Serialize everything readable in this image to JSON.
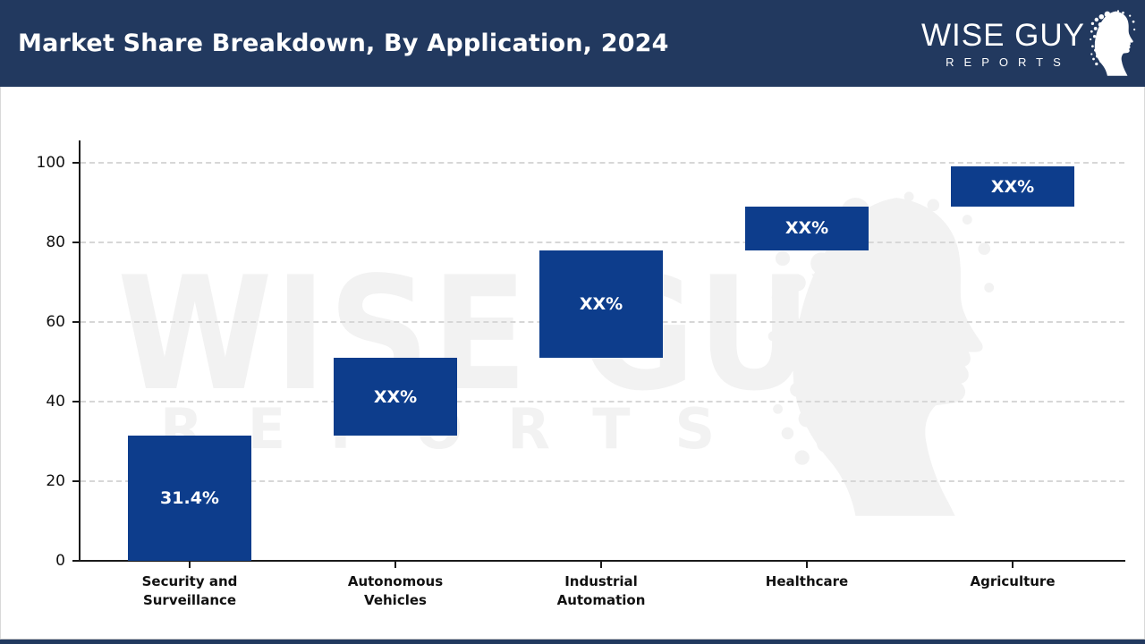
{
  "header": {
    "title": "Market Share Breakdown, By Application, 2024",
    "brand": {
      "name": "Wise Guy Reports logo",
      "line1": "WISE GUY",
      "line2": "REPORTS"
    }
  },
  "watermark": {
    "line1": "WISE GUY",
    "line2": "REPORTS"
  },
  "chart_data": {
    "type": "bar",
    "subtype": "waterfall",
    "title": "Market Share Breakdown, By Application, 2024",
    "unit": "%",
    "categories": [
      "Security and Surveillance",
      "Autonomous Vehicles",
      "Industrial Automation",
      "Healthcare",
      "Agriculture"
    ],
    "bars": [
      {
        "category": "Security and Surveillance",
        "label_wrapped": "Security and\nSurveillance",
        "start": 0,
        "end": 31.4,
        "value_label": "31.4%"
      },
      {
        "category": "Autonomous Vehicles",
        "label_wrapped": "Autonomous\nVehicles",
        "start": 31.4,
        "end": 51,
        "value_label": "XX%"
      },
      {
        "category": "Industrial Automation",
        "label_wrapped": "Industrial\nAutomation",
        "start": 51,
        "end": 78,
        "value_label": "XX%"
      },
      {
        "category": "Healthcare",
        "label_wrapped": "Healthcare",
        "start": 78,
        "end": 89,
        "value_label": "XX%"
      },
      {
        "category": "Agriculture",
        "label_wrapped": "Agriculture",
        "start": 89,
        "end": 99,
        "value_label": "XX%"
      }
    ],
    "y_ticks": [
      0,
      20,
      40,
      60,
      80,
      100
    ],
    "ylim": [
      0,
      100
    ],
    "xlabel": "",
    "ylabel": "",
    "grid": "horizontal-dashed",
    "legend": null,
    "bar_color": "#0d3d8c"
  },
  "colors": {
    "header_bg": "#22395f",
    "footer_bg": "#22395f",
    "bar": "#0d3d8c",
    "watermark": "#f2f2f2",
    "grid": "#d7d7d7",
    "axis": "#1a1a1a",
    "title_text": "#ffffff",
    "label_text": "#111111",
    "chart_border": "#c9c9c9"
  }
}
